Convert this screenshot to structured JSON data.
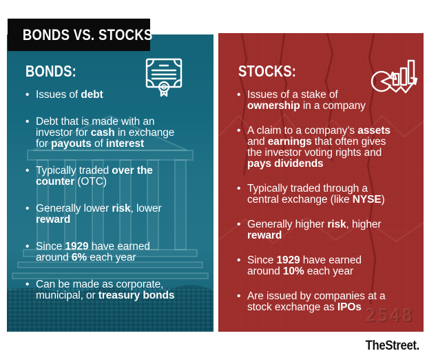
{
  "banner": {
    "title": "BONDS VS. STOCKS"
  },
  "colors": {
    "teal-panel": "#15697F",
    "red-panel": "#9E2F2D",
    "banner": "#0B0B0B",
    "text": "#FFFFFF",
    "logo": "#111111"
  },
  "bonds_panel": {
    "heading": "BONDS:",
    "icon": "certificate-icon",
    "bullets": [
      "Issues of **debt**",
      "Debt that is made with an\ninvestor for **cash** in exchange\nfor **payouts** of **interest**",
      "Typically traded **over the**\n**counter** (OTC)",
      "Generally lower **risk**, lower\n**reward**",
      "Since **1929** have earned\naround **6%** each year",
      "Can be made as corporate,\nmunicipal, or **treasury bonds**"
    ]
  },
  "stocks_panel": {
    "heading": "STOCKS:",
    "icon": "growth-chart-icon",
    "background_ticker": "2548",
    "bullets": [
      "Issues of a stake of\n**ownership** in a company",
      "A claim to a company’s **assets**\nand **earnings** that often gives\nthe investor voting rights and\n**pays dividends**",
      "Typically traded through a\ncentral exchange (like **NYSE**)",
      "Generally higher **risk**, higher\n**reward**",
      "Since **1929** have earned\naround **10%** each year",
      "Are issued by companies at a\nstock exchange as **IPOs**"
    ]
  },
  "footer": {
    "logo": "TheStreet."
  }
}
